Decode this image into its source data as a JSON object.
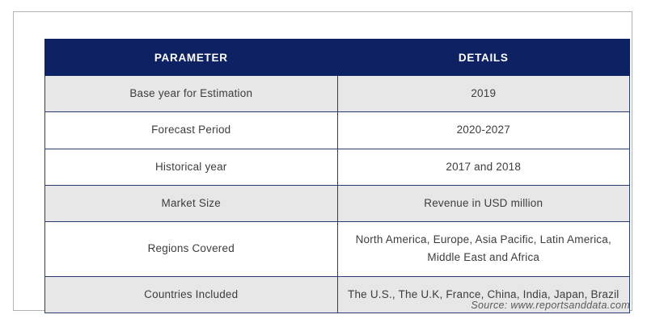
{
  "chart_data": {
    "type": "table",
    "columns": [
      "PARAMETER",
      "DETAILS"
    ],
    "rows": [
      {
        "parameter": "Base year for Estimation",
        "details": "2019",
        "shaded": true
      },
      {
        "parameter": "Forecast Period",
        "details": "2020-2027",
        "shaded": false
      },
      {
        "parameter": "Historical year",
        "details": "2017 and 2018",
        "shaded": false
      },
      {
        "parameter": "Market Size",
        "details": "Revenue in USD million",
        "shaded": true
      },
      {
        "parameter": "Regions Covered",
        "details": "North America, Europe, Asia Pacific, Latin America, Middle East and Africa",
        "shaded": false
      },
      {
        "parameter": "Countries Included",
        "details": "The U.S., The U.K, France, China, India, Japan, Brazil",
        "shaded": true
      }
    ]
  },
  "source_note": "Source: www.reportsanddata.com",
  "colors": {
    "header_bg": "#0d2163",
    "header_text": "#ffffff",
    "row_bg": "#ffffff",
    "shaded_row_bg": "#e7e7e7",
    "table_border": "#2b3c72",
    "frame_border": "#b3b3b3",
    "cell_text": "#3d3d3d",
    "source_text": "#5a5a5a"
  }
}
